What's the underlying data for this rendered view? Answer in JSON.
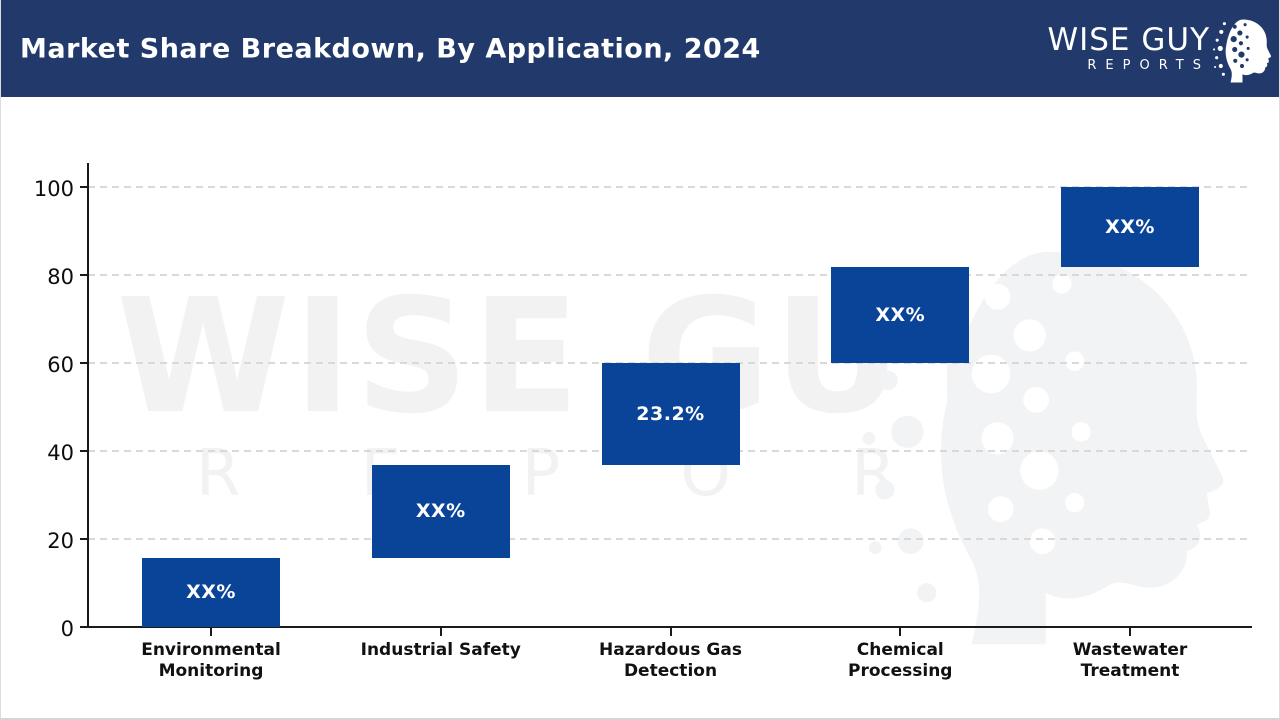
{
  "header": {
    "title": "Market Share Breakdown, By Application, 2024",
    "logo": {
      "wordmark": "WISE GUY",
      "subline": "REPORTS"
    }
  },
  "watermark": {
    "wordmark": "WISE GUY",
    "subline": "R E P O R T S"
  },
  "chart_data": {
    "type": "bar",
    "subtype": "floating-waterfall",
    "title": "Market Share Breakdown, By Application, 2024",
    "categories": [
      [
        "Environmental",
        "Monitoring"
      ],
      [
        "Industrial Safety"
      ],
      [
        "Hazardous Gas",
        "Detection"
      ],
      [
        "Chemical",
        "Processing"
      ],
      [
        "Wastewater",
        "Treatment"
      ]
    ],
    "series": [
      {
        "name": "Market share (%)",
        "segments": [
          {
            "start": 0,
            "end": 15.7,
            "value": 15.7,
            "label": "XX%"
          },
          {
            "start": 15.7,
            "end": 36.8,
            "value": 21.1,
            "label": "XX%"
          },
          {
            "start": 36.8,
            "end": 60.0,
            "value": 23.2,
            "label": "23.2%"
          },
          {
            "start": 60.0,
            "end": 81.8,
            "value": 21.8,
            "label": "XX%"
          },
          {
            "start": 81.8,
            "end": 100.0,
            "value": 18.2,
            "label": "XX%"
          }
        ]
      }
    ],
    "xlabel": "",
    "ylabel": "",
    "ylim": [
      0,
      100
    ],
    "yticks": [
      0,
      20,
      40,
      60,
      80,
      100
    ],
    "grid": "horizontal-dashed",
    "legend": "none",
    "colors": {
      "bar": "#0a4499",
      "bar_label": "#ffffff",
      "grid": "#d9d9d9",
      "axis": "#1a1a1a",
      "header_bg": "#213a6b",
      "header_text": "#ffffff",
      "watermark": "#f2f2f2"
    }
  }
}
